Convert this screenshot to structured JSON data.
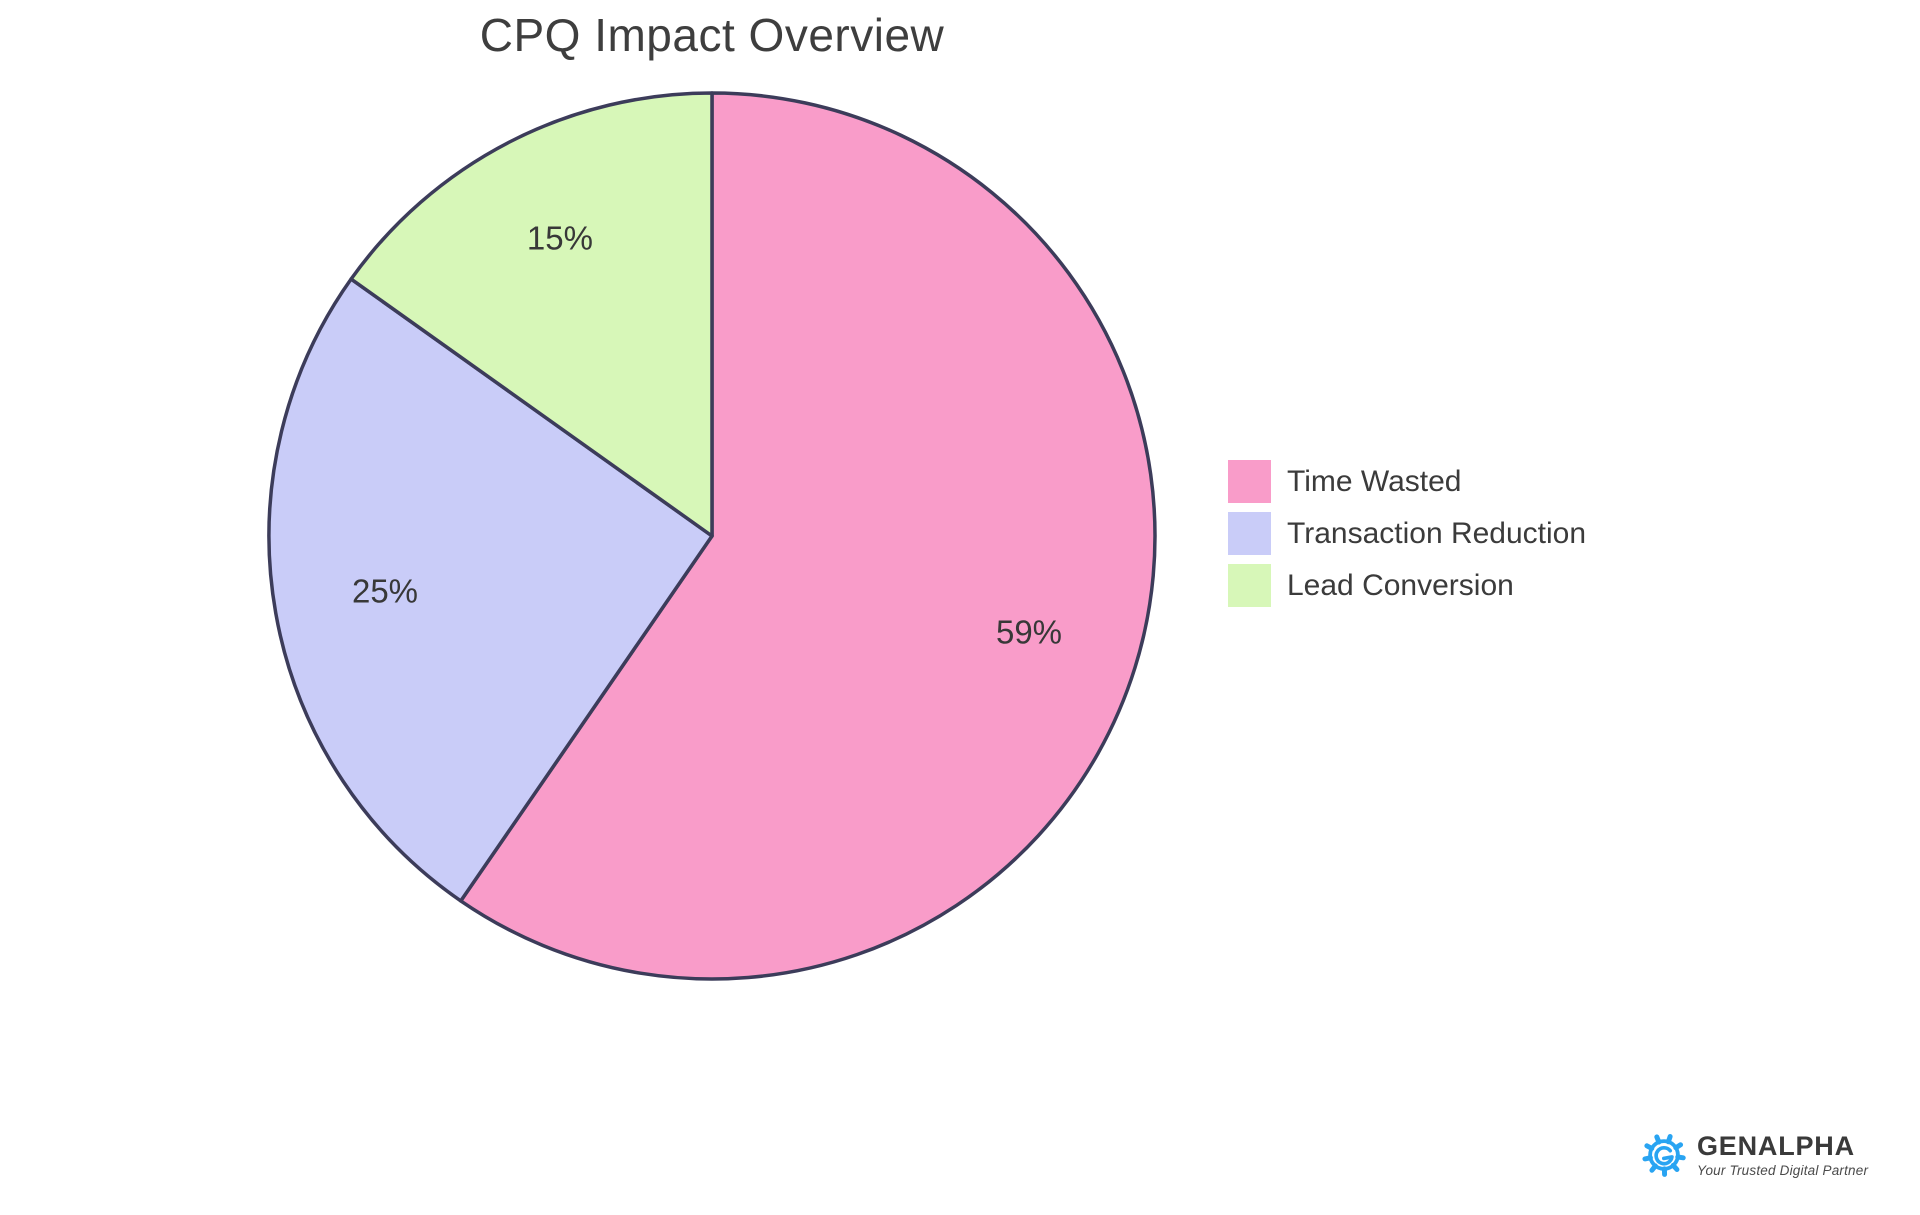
{
  "chart_data": {
    "type": "pie",
    "title": "CPQ Impact Overview",
    "slices": [
      {
        "label": "Time Wasted",
        "value": 59,
        "percent_label": "59%",
        "color": "#F99CC9"
      },
      {
        "label": "Transaction Reduction",
        "value": 25,
        "percent_label": "25%",
        "color": "#C9CCF8"
      },
      {
        "label": "Lead Conversion",
        "value": 15,
        "percent_label": "15%",
        "color": "#D7F7B8"
      }
    ],
    "stroke_color": "#3C3C5A",
    "label_text_color": "#383838",
    "start_angle_deg": 0,
    "direction": "clockwise",
    "legend_position": "right",
    "labels_inside": true
  },
  "branding": {
    "name": "GENALPHA",
    "tagline": "Your Trusted Digital Partner",
    "logo_color": "#29A4F2"
  }
}
